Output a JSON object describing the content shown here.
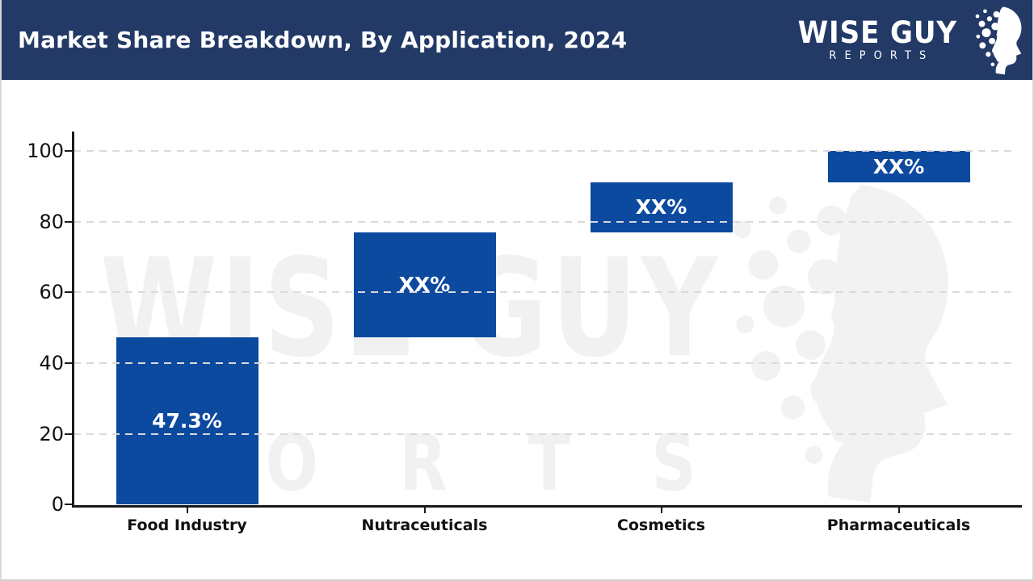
{
  "header": {
    "title": "Market Share Breakdown, By Application, 2024",
    "bg_color": "#233a67",
    "brand": {
      "line1": "WISE GUY",
      "line2": "REPORTS"
    }
  },
  "watermark": {
    "line1": "WISE GUY",
    "line2": "P O R T S",
    "full_line2": "R E P O R T S"
  },
  "chart_data": {
    "type": "bar",
    "subtype": "waterfall",
    "title": "Market Share Breakdown, By Application, 2024",
    "xlabel": "",
    "ylabel": "",
    "ylim": [
      0,
      100
    ],
    "yticks": [
      0,
      20,
      40,
      60,
      80,
      100
    ],
    "grid": "horizontal-dashed",
    "legend": "none",
    "bar_color": "#0c4aa0",
    "label_color": "#ffffff",
    "categories": [
      "Food Industry",
      "Nutraceuticals",
      "Cosmetics",
      "Pharmaceuticals"
    ],
    "segments": [
      {
        "category": "Food Industry",
        "start": 0,
        "end": 47.3,
        "label": "47.3%"
      },
      {
        "category": "Nutraceuticals",
        "start": 47.3,
        "end": 76.9,
        "label": "XX%"
      },
      {
        "category": "Cosmetics",
        "start": 76.9,
        "end": 91.0,
        "label": "XX%"
      },
      {
        "category": "Pharmaceuticals",
        "start": 91.0,
        "end": 100,
        "label": "XX%"
      }
    ]
  }
}
